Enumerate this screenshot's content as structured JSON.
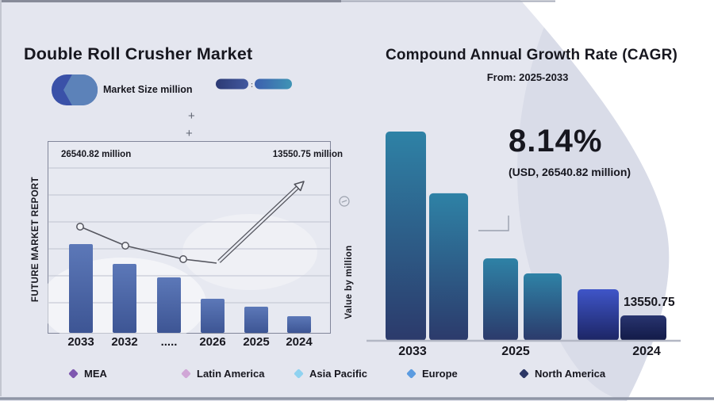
{
  "left_section": {
    "title": "Double Roll Crusher Market",
    "market_size_label": "Market Size million",
    "plus_marks": [
      "+",
      "+"
    ],
    "side_label": "FUTURE MARKET REPORT",
    "value_axis_label": "Value by million",
    "chart": {
      "max_label": "26540.82 million",
      "min_label": "13550.75 million",
      "categories": [
        "2033",
        "2032",
        ".....",
        "2026",
        "2025",
        "2024"
      ],
      "bar_values": [
        100,
        77.7,
        62.5,
        38.4,
        29.5,
        18.8
      ],
      "line_points": [
        [
          41,
          108
        ],
        [
          98,
          132
        ],
        [
          171,
          149
        ],
        [
          213,
          154
        ]
      ],
      "arrow_end": [
        323,
        51
      ]
    },
    "legend": [
      {
        "label": "MEA",
        "color": "#7e57b0"
      },
      {
        "label": "Latin America",
        "color": "#d0a6d6"
      },
      {
        "label": "Asia Pacific",
        "color": "#8fd2f0"
      },
      {
        "label": "Europe",
        "color": "#5b9be0"
      },
      {
        "label": "North America",
        "color": "#2c3766"
      }
    ]
  },
  "right_section": {
    "title": "Compound Annual Growth Rate (CAGR)",
    "subtitle": "From: 2025-2033",
    "cagr_value": "8.14%",
    "cagr_note": "(USD, 26540.82 million)",
    "chart": {
      "value_label": "13550.75",
      "groups": [
        {
          "label": "2033",
          "values": [
            100,
            70.5
          ]
        },
        {
          "label": "2025",
          "values": [
            39.4,
            32.2
          ]
        },
        {
          "label": "2024",
          "values": [
            24.6,
            12.1
          ]
        }
      ]
    }
  },
  "colors": {
    "panel_bg": "#e4e6ef",
    "left_bar_top": "#5c78b8",
    "left_bar_bottom": "#3d5594",
    "teal_bar_top": "#2e82a6",
    "teal_bar_bottom": "#2c3a6b",
    "blue_bar_top": "#3f55c8",
    "blue_bar_bottom": "#1c2564",
    "navy_bar_top": "#28346f",
    "navy_bar_bottom": "#121a47",
    "line_color": "#55565f"
  },
  "chart_data": [
    {
      "type": "bar",
      "title": "Double Roll Crusher Market — Market Size million",
      "categories": [
        "2033",
        "2032",
        ".....",
        "2026",
        "2025",
        "2024"
      ],
      "series": [
        {
          "name": "Market Size (relative bar height %)",
          "values": [
            100,
            77.7,
            62.5,
            38.4,
            29.5,
            18.8
          ]
        }
      ],
      "annotations": [
        "26540.82 million",
        "13550.75 million"
      ],
      "overlay": "declining marker line over first three bars turning into an upward outlined arrow",
      "legend_entries": [
        "MEA",
        "Latin America",
        "Asia Pacific",
        "Europe",
        "North America"
      ],
      "legend_position": "bottom",
      "grid": "horizontal",
      "ylabel_left": "FUTURE MARKET REPORT",
      "ylabel_right": "Value by million"
    },
    {
      "type": "bar",
      "title": "Compound Annual Growth Rate (CAGR) From: 2025-2033",
      "categories": [
        "2033",
        "2025",
        "2024"
      ],
      "series": [
        {
          "name": "left bar (relative height %)",
          "values": [
            100,
            39.4,
            24.6
          ]
        },
        {
          "name": "right bar (relative height %)",
          "values": [
            70.5,
            32.2,
            12.1
          ]
        }
      ],
      "annotations": [
        "8.14%",
        "(USD, 26540.82 million)",
        "13550.75"
      ],
      "grid": "off"
    }
  ]
}
